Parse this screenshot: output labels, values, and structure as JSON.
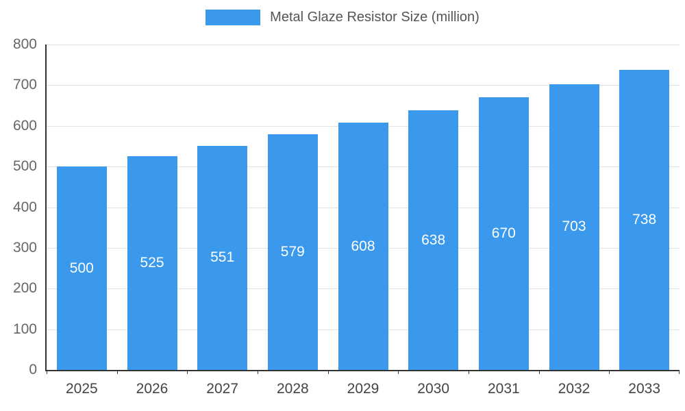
{
  "colors": {
    "bar": "#3a99ec",
    "grid": "#e2e2e2",
    "axis": "#333333",
    "y_tick_label": "#666666",
    "x_tick_label": "#444444",
    "legend_text": "#555555",
    "value_label": "#ffffff",
    "background": "#ffffff"
  },
  "legend": {
    "label": "Metal Glaze Resistor Size (million)"
  },
  "chart_data": {
    "type": "bar",
    "title": "Metal Glaze Resistor Size (million)",
    "categories": [
      "2025",
      "2026",
      "2027",
      "2028",
      "2029",
      "2030",
      "2031",
      "2032",
      "2033"
    ],
    "values": [
      500,
      525,
      551,
      579,
      608,
      638,
      670,
      703,
      738
    ],
    "xlabel": "",
    "ylabel": "",
    "ylim": [
      0,
      800
    ],
    "ytick_step": 100,
    "yticks": [
      0,
      100,
      200,
      300,
      400,
      500,
      600,
      700,
      800
    ],
    "grid": true,
    "legend_position": "top",
    "value_labels": "inside-center"
  }
}
